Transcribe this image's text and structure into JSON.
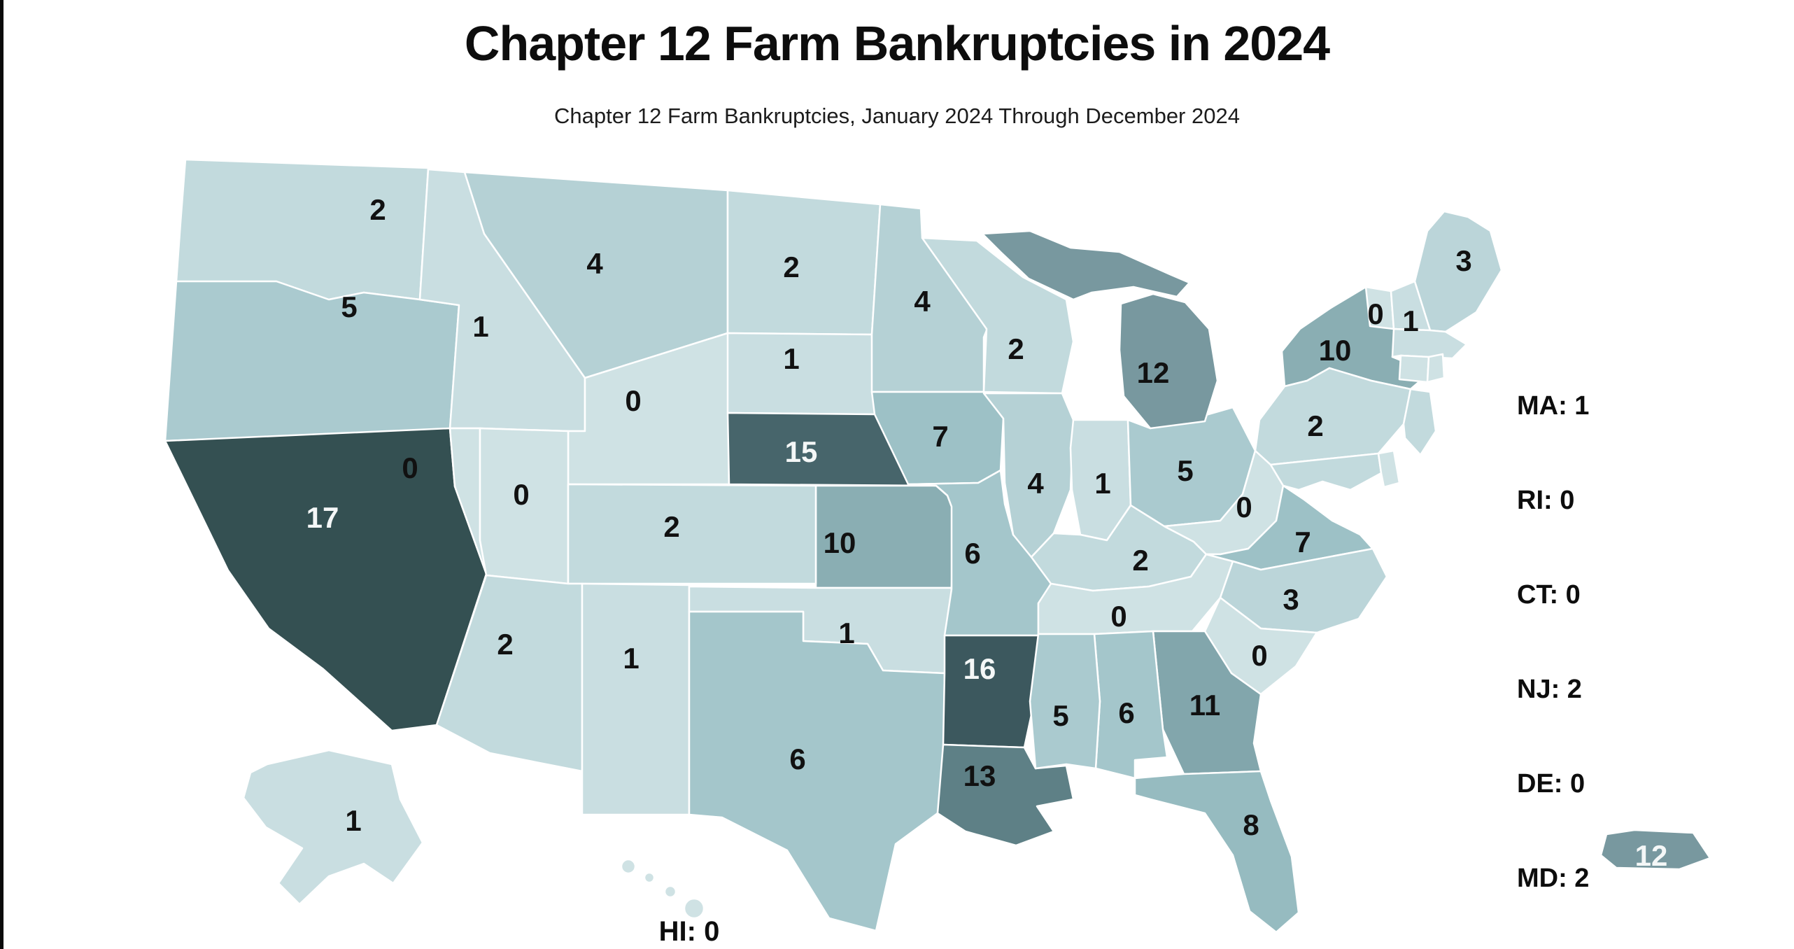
{
  "page": {
    "title": "Chapter 12 Farm Bankruptcies in 2024",
    "subtitle": "Chapter 12 Farm Bankruptcies, January 2024 Through December 2024"
  },
  "side_list": [
    {
      "text": "MA: 1"
    },
    {
      "text": "RI: 0"
    },
    {
      "text": "CT: 0"
    },
    {
      "text": "NJ: 2"
    },
    {
      "text": "DE: 0"
    },
    {
      "text": "MD: 2"
    }
  ],
  "chart_data": {
    "type": "choropleth",
    "title": "Chapter 12 Farm Bankruptcies in 2024",
    "subtitle": "Chapter 12 Farm Bankruptcies, January 2024 Through December 2024",
    "region": "United States",
    "unit": "Chapter 12 farm bankruptcy filings",
    "hawaii_label": "HI: 0",
    "callout_states": [
      "MA",
      "RI",
      "CT",
      "NJ",
      "DE",
      "MD"
    ],
    "states": [
      {
        "code": "WA",
        "value": 2
      },
      {
        "code": "OR",
        "value": 5
      },
      {
        "code": "CA",
        "value": 17
      },
      {
        "code": "NV",
        "value": 0
      },
      {
        "code": "ID",
        "value": 1
      },
      {
        "code": "UT",
        "value": 0
      },
      {
        "code": "AZ",
        "value": 2
      },
      {
        "code": "MT",
        "value": 4
      },
      {
        "code": "WY",
        "value": 0
      },
      {
        "code": "CO",
        "value": 2
      },
      {
        "code": "NM",
        "value": 1
      },
      {
        "code": "ND",
        "value": 2
      },
      {
        "code": "SD",
        "value": 1
      },
      {
        "code": "NE",
        "value": 15
      },
      {
        "code": "KS",
        "value": 10
      },
      {
        "code": "OK",
        "value": 1
      },
      {
        "code": "TX",
        "value": 6
      },
      {
        "code": "MN",
        "value": 4
      },
      {
        "code": "IA",
        "value": 7
      },
      {
        "code": "MO",
        "value": 6
      },
      {
        "code": "AR",
        "value": 16
      },
      {
        "code": "LA",
        "value": 13
      },
      {
        "code": "WI",
        "value": 2
      },
      {
        "code": "IL",
        "value": 4
      },
      {
        "code": "IN",
        "value": 1
      },
      {
        "code": "OH",
        "value": 5
      },
      {
        "code": "MI",
        "value": 12
      },
      {
        "code": "KY",
        "value": 2
      },
      {
        "code": "TN",
        "value": 0
      },
      {
        "code": "MS",
        "value": 5
      },
      {
        "code": "AL",
        "value": 6
      },
      {
        "code": "GA",
        "value": 11
      },
      {
        "code": "FL",
        "value": 8
      },
      {
        "code": "WV",
        "value": 0
      },
      {
        "code": "VA",
        "value": 7
      },
      {
        "code": "NC",
        "value": 3
      },
      {
        "code": "SC",
        "value": 0
      },
      {
        "code": "PA",
        "value": 2
      },
      {
        "code": "NY",
        "value": 10
      },
      {
        "code": "VT",
        "value": 0
      },
      {
        "code": "NH",
        "value": 1
      },
      {
        "code": "ME",
        "value": 3
      },
      {
        "code": "MA",
        "value": 1
      },
      {
        "code": "RI",
        "value": 0
      },
      {
        "code": "CT",
        "value": 0
      },
      {
        "code": "NJ",
        "value": 2
      },
      {
        "code": "DE",
        "value": 0
      },
      {
        "code": "MD",
        "value": 2
      },
      {
        "code": "AK",
        "value": 1
      },
      {
        "code": "HI",
        "value": 0
      },
      {
        "code": "PR",
        "value": 12
      }
    ],
    "color_scale": [
      {
        "value": 0,
        "color": "#cfe2e4"
      },
      {
        "value": 4,
        "color": "#b5d1d5"
      },
      {
        "value": 8,
        "color": "#96bbc0"
      },
      {
        "value": 12,
        "color": "#78989f"
      },
      {
        "value": 13,
        "color": "#5e8086"
      },
      {
        "value": 17,
        "color": "#345052"
      }
    ]
  }
}
